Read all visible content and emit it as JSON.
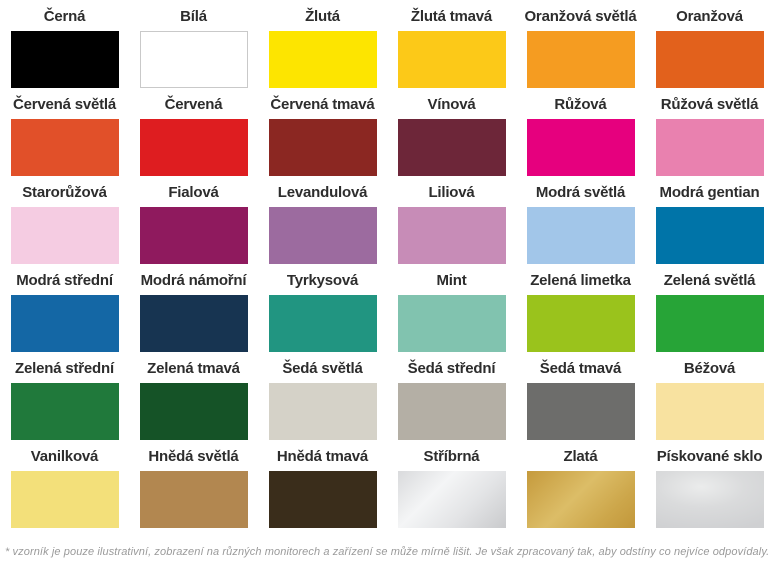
{
  "page": {
    "background": "#ffffff",
    "footnote": "* vzorník je pouze ilustrativní, zobrazení na různých monitorech a zařízení se může mírně lišit. Je však zpracovaný tak, aby odstíny co nejvíce odpovídaly."
  },
  "palette": {
    "label_color": "#2d2d2d",
    "columns": 6,
    "rows": 6,
    "gradients": {
      "silver": "linear-gradient(135deg,#d9dadc 0%,#f4f5f6 35%,#e3e4e6 65%,#c9cacc 100%)",
      "gold": "linear-gradient(135deg,#c59a3c 0%,#dcbd67 45%,#cda74b 75%,#c2973a 100%)",
      "frosted": "radial-gradient(ellipse 90% 80% at 42% 28%, #ebecec 0%, #dadbdc 45%, #cfd0d2 100%)"
    },
    "swatches": [
      {
        "name": "Černá",
        "color": "#000000"
      },
      {
        "name": "Bílá",
        "color": "#ffffff",
        "border": "#c9c9c9"
      },
      {
        "name": "Žlutá",
        "color": "#fde500"
      },
      {
        "name": "Žlutá tmavá",
        "color": "#fcc918"
      },
      {
        "name": "Oranžová světlá",
        "color": "#f59c21"
      },
      {
        "name": "Oranžová",
        "color": "#e2611c"
      },
      {
        "name": "Červená světlá",
        "color": "#e15029"
      },
      {
        "name": "Červená",
        "color": "#de1d20"
      },
      {
        "name": "Červená tmavá",
        "color": "#8b2722"
      },
      {
        "name": "Vínová",
        "color": "#6d2639"
      },
      {
        "name": "Růžová",
        "color": "#e6007e"
      },
      {
        "name": "Růžová světlá",
        "color": "#e981af"
      },
      {
        "name": "Starorůžová",
        "color": "#f5cce2"
      },
      {
        "name": "Fialová",
        "color": "#8f1a5e"
      },
      {
        "name": "Levandulová",
        "color": "#9c6b9f"
      },
      {
        "name": "Liliová",
        "color": "#c78cb7"
      },
      {
        "name": "Modrá světlá",
        "color": "#a2c6e9"
      },
      {
        "name": "Modrá gentian",
        "color": "#0074a8"
      },
      {
        "name": "Modrá střední",
        "color": "#1467a5"
      },
      {
        "name": "Modrá námořní",
        "color": "#173451"
      },
      {
        "name": "Tyrkysová",
        "color": "#219581"
      },
      {
        "name": "Mint",
        "color": "#81c3af"
      },
      {
        "name": "Zelená limetka",
        "color": "#9ac31c"
      },
      {
        "name": "Zelená světlá",
        "color": "#27a437"
      },
      {
        "name": "Zelená střední",
        "color": "#20793b"
      },
      {
        "name": "Zelená tmavá",
        "color": "#155327"
      },
      {
        "name": "Šedá světlá",
        "color": "#d5d2c8"
      },
      {
        "name": "Šedá střední",
        "color": "#b4afa5"
      },
      {
        "name": "Šedá tmavá",
        "color": "#6d6d6b"
      },
      {
        "name": "Béžová",
        "color": "#f8e2a0"
      },
      {
        "name": "Vanilková",
        "color": "#f3e07a"
      },
      {
        "name": "Hnědá světlá",
        "color": "#b28750"
      },
      {
        "name": "Hnědá tmavá",
        "color": "#3a2d1b"
      },
      {
        "name": "Stříbrná",
        "gradient": "silver"
      },
      {
        "name": "Zlatá",
        "gradient": "gold"
      },
      {
        "name": "Pískované sklo",
        "gradient": "frosted"
      }
    ]
  }
}
